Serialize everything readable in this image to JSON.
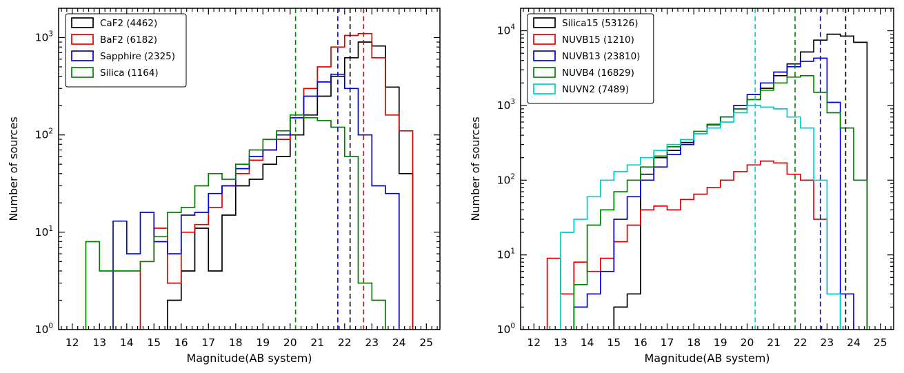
{
  "chart_data": [
    {
      "type": "step-histogram",
      "panel": "left",
      "xlabel": "Magnitude(AB system)",
      "ylabel": "Number of sources",
      "xlim": [
        11.5,
        25.5
      ],
      "ylim": [
        1,
        2000
      ],
      "x_ticks": [
        12,
        13,
        14,
        15,
        16,
        17,
        18,
        19,
        20,
        21,
        22,
        23,
        24,
        25
      ],
      "y_tick_exponents": [
        0,
        1,
        2,
        3
      ],
      "bin_width": 0.5,
      "grid": false,
      "legend_position": "upper-left",
      "series": [
        {
          "name": "CaF2 (4462)",
          "color": "#000000",
          "bin_start": 15.5,
          "counts": [
            2,
            4,
            11,
            4,
            15,
            30,
            35,
            50,
            60,
            100,
            160,
            250,
            400,
            620,
            900,
            820,
            310,
            40
          ]
        },
        {
          "name": "BaF2 (6182)",
          "color": "#dd0000",
          "bin_start": 14.5,
          "counts": [
            5,
            11,
            3,
            10,
            12,
            18,
            30,
            40,
            55,
            70,
            90,
            150,
            300,
            500,
            800,
            1050,
            1100,
            620,
            160,
            110
          ]
        },
        {
          "name": "Sapphire (2325)",
          "color": "#0000dd",
          "bin_start": 13.5,
          "counts": [
            13,
            6,
            16,
            8,
            6,
            15,
            16,
            25,
            30,
            45,
            60,
            70,
            100,
            150,
            250,
            350,
            420,
            300,
            100,
            30,
            25
          ]
        },
        {
          "name": "Silica (1164)",
          "color": "#008000",
          "bin_start": 12.5,
          "counts": [
            8,
            4,
            4,
            4,
            5,
            9,
            16,
            18,
            30,
            40,
            35,
            50,
            70,
            90,
            110,
            160,
            150,
            140,
            120,
            60,
            3,
            2
          ]
        }
      ],
      "vlines": [
        {
          "x": 20.2,
          "color": "#008000"
        },
        {
          "x": 21.75,
          "color": "#0000dd"
        },
        {
          "x": 22.2,
          "color": "#000000"
        },
        {
          "x": 22.7,
          "color": "#dd0000"
        }
      ]
    },
    {
      "type": "step-histogram",
      "panel": "right",
      "xlabel": "Magnitude(AB system)",
      "ylabel": "Number of sources",
      "xlim": [
        11.5,
        25.5
      ],
      "ylim": [
        1,
        20000
      ],
      "x_ticks": [
        12,
        13,
        14,
        15,
        16,
        17,
        18,
        19,
        20,
        21,
        22,
        23,
        24,
        25
      ],
      "y_tick_exponents": [
        0,
        1,
        2,
        3,
        4
      ],
      "bin_width": 0.5,
      "grid": false,
      "legend_position": "upper-left",
      "series": [
        {
          "name": "Silica15 (53126)",
          "color": "#000000",
          "bin_start": 15.0,
          "counts": [
            2,
            3,
            120,
            200,
            250,
            320,
            420,
            550,
            700,
            900,
            1200,
            1700,
            2500,
            3600,
            5200,
            7500,
            9000,
            8500,
            7000
          ]
        },
        {
          "name": "NUVB15 (1210)",
          "color": "#dd0000",
          "bin_start": 12.5,
          "counts": [
            9,
            3,
            8,
            6,
            9,
            15,
            25,
            40,
            45,
            40,
            55,
            65,
            80,
            100,
            130,
            160,
            180,
            170,
            120,
            100,
            30,
            3
          ]
        },
        {
          "name": "NUVB13 (23810)",
          "color": "#0000dd",
          "bin_start": 13.5,
          "counts": [
            2,
            3,
            6,
            30,
            60,
            100,
            150,
            220,
            300,
            420,
            550,
            700,
            1000,
            1400,
            2000,
            2800,
            3300,
            3900,
            4300,
            1100,
            3
          ]
        },
        {
          "name": "NUVB4 (16829)",
          "color": "#008000",
          "bin_start": 13.5,
          "counts": [
            4,
            25,
            40,
            70,
            100,
            150,
            210,
            280,
            350,
            450,
            560,
            700,
            900,
            1200,
            1600,
            2000,
            2400,
            2500,
            1500,
            800,
            500,
            100
          ]
        },
        {
          "name": "NUVN2 (7489)",
          "color": "#00cccc",
          "bin_start": 12.5,
          "counts": [
            1,
            20,
            30,
            60,
            100,
            130,
            160,
            200,
            250,
            300,
            350,
            420,
            500,
            600,
            800,
            1000,
            950,
            900,
            700,
            500,
            100,
            3
          ]
        }
      ],
      "vlines": [
        {
          "x": 20.3,
          "color": "#00cccc"
        },
        {
          "x": 21.8,
          "color": "#008000"
        },
        {
          "x": 22.75,
          "color": "#0000dd"
        },
        {
          "x": 23.7,
          "color": "#000000"
        }
      ]
    }
  ]
}
